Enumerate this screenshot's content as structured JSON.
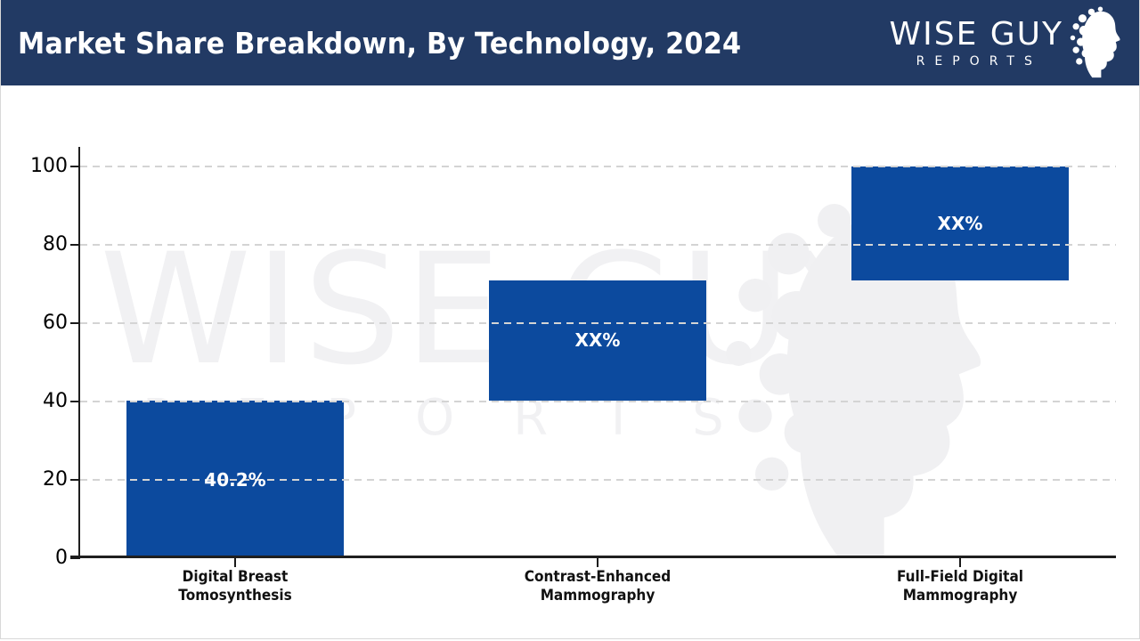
{
  "header": {
    "title": "Market Share Breakdown, By Technology, 2024",
    "logo": {
      "line1": "WISE GUY",
      "line2": "REPORTS"
    }
  },
  "watermark": {
    "line1": "WISE GUY",
    "line2": "REPORTS"
  },
  "colors": {
    "header_bg": "#223A64",
    "bar": "#0C4A9E",
    "gridline": "#d4d4d4",
    "axis": "#1f1f1f",
    "watermark": "#f1f1f3",
    "bar_label_text": "#ffffff"
  },
  "chart_data": {
    "type": "bar",
    "subtype": "waterfall",
    "title": "Market Share Breakdown, By Technology, 2024",
    "categories": [
      [
        "Digital Breast",
        "Tomosynthesis"
      ],
      [
        "Contrast-Enhanced",
        "Mammography"
      ],
      [
        "Full-Field Digital",
        "Mammography"
      ]
    ],
    "bars": [
      {
        "category": "Digital Breast Tomosynthesis",
        "start": 0,
        "end": 40.2,
        "segment_value": 40.2,
        "label": "40.2%"
      },
      {
        "category": "Contrast-Enhanced Mammography",
        "start": 40.2,
        "end": 71,
        "segment_value": 30.8,
        "label": "XX%"
      },
      {
        "category": "Full-Field Digital Mammography",
        "start": 71,
        "end": 100,
        "segment_value": 29,
        "label": "XX%"
      }
    ],
    "ylim": [
      0,
      100
    ],
    "yticks": [
      0,
      20,
      40,
      60,
      80,
      100
    ],
    "xlabel": "",
    "ylabel": "",
    "grid": "horizontal-dashed-over-bars",
    "legend": null
  }
}
